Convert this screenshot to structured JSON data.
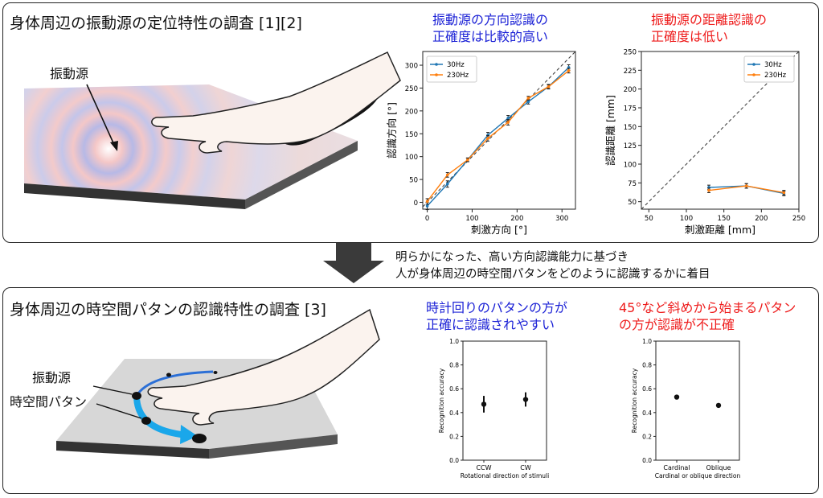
{
  "top": {
    "title": "身体周辺の振動源の定位特性の調査 [1][2]",
    "source_label": "振動源",
    "cap_left": [
      "振動源の方向認識の",
      "正確度は比較的高い"
    ],
    "cap_right": [
      "振動源の距離認識の",
      "正確度は低い"
    ]
  },
  "middle": {
    "lines": [
      "明らかになった、高い方向認識能力に基づき",
      "人が身体周辺の時空間パタンをどのように認識するかに着目"
    ]
  },
  "bottom": {
    "title": "身体周辺の時空間パタンの認識特性の調査 [3]",
    "source_label": "振動源",
    "pattern_label": "時空間パタン",
    "cap_left": [
      "時計回りのパタンの方が",
      "正確に認識されやすい"
    ],
    "cap_right": [
      "45°など斜めから始まるパタン",
      "の方が認識が不正確"
    ]
  },
  "chart_data": [
    {
      "type": "line",
      "xlabel": "刺激方向 [°]",
      "ylabel": "認識方向 [°]",
      "xlim": [
        -10,
        330
      ],
      "ylim": [
        -15,
        330
      ],
      "xticks": [
        0,
        100,
        200,
        300
      ],
      "yticks": [
        0,
        50,
        100,
        150,
        200,
        250,
        300
      ],
      "legend": "top-left",
      "reference_line": "y = x (dashed)",
      "x": [
        0,
        45,
        90,
        135,
        180,
        225,
        270,
        315
      ],
      "series": [
        {
          "name": "30Hz",
          "color": "#1f77b4",
          "values": [
            -8,
            40,
            93,
            147,
            184,
            220,
            253,
            295
          ],
          "err": [
            8,
            7,
            4,
            6,
            6,
            5,
            4,
            6
          ]
        },
        {
          "name": "230Hz",
          "color": "#ff7f0e",
          "values": [
            2,
            60,
            93,
            140,
            175,
            228,
            253,
            288
          ],
          "err": [
            6,
            5,
            4,
            6,
            6,
            4,
            5,
            5
          ]
        }
      ]
    },
    {
      "type": "line",
      "xlabel": "刺激距離 [mm]",
      "ylabel": "認識距離 [mm]",
      "xlim": [
        40,
        250
      ],
      "ylim": [
        40,
        250
      ],
      "xticks": [
        50,
        100,
        150,
        200,
        250
      ],
      "yticks": [
        50,
        75,
        100,
        125,
        150,
        175,
        200,
        225,
        250
      ],
      "legend": "top-right",
      "reference_line": "y = x (dashed)",
      "x": [
        130,
        180,
        230
      ],
      "series": [
        {
          "name": "30Hz",
          "color": "#1f77b4",
          "values": [
            69,
            71,
            61
          ],
          "err": [
            3,
            3,
            3
          ]
        },
        {
          "name": "230Hz",
          "color": "#ff7f0e",
          "values": [
            65,
            71,
            62
          ],
          "err": [
            3,
            3,
            3
          ]
        }
      ]
    },
    {
      "type": "scatter",
      "xlabel": "Rotational direction of stimuli",
      "ylabel": "Recognition accuracy",
      "categories": [
        "CCW",
        "CW"
      ],
      "values": [
        0.47,
        0.51
      ],
      "err": [
        0.07,
        0.06
      ],
      "ylim": [
        0.0,
        1.0
      ],
      "yticks": [
        "0.0",
        "0.2",
        "0.4",
        "0.6",
        "0.8",
        "1.0"
      ]
    },
    {
      "type": "scatter",
      "xlabel": "Cardinal or oblique direction",
      "ylabel": "Recognition accuracy",
      "categories": [
        "Cardinal",
        "Oblique"
      ],
      "values": [
        0.53,
        0.46
      ],
      "err": [
        0.02,
        0.02
      ],
      "ylim": [
        0.0,
        1.0
      ],
      "yticks": [
        "0.0",
        "0.2",
        "0.4",
        "0.6",
        "0.8",
        "1.0"
      ]
    }
  ]
}
